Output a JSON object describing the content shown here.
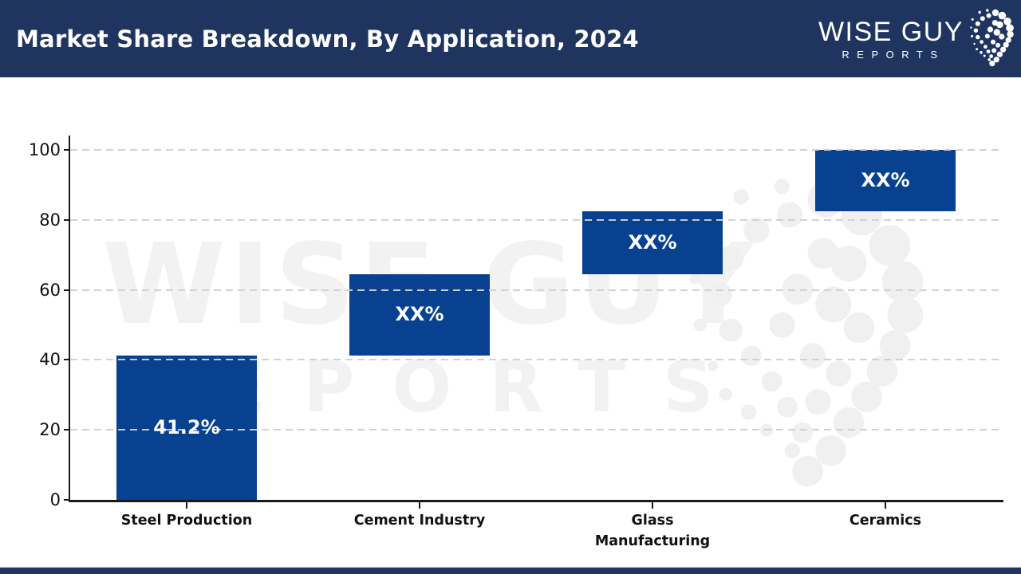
{
  "header": {
    "title": "Market Share Breakdown, By Application, 2024",
    "logo": {
      "line1": "WISE GUY",
      "line2": "REPORTS"
    }
  },
  "watermark": {
    "line1": "WISE GUY",
    "line2": "REPORTS"
  },
  "chart_data": {
    "type": "bar",
    "subtype": "waterfall",
    "title": "Market Share Breakdown, By Application, 2024",
    "categories": [
      "Steel Production",
      "Cement Industry",
      "Glass Manufacturing",
      "Ceramics"
    ],
    "categories_multiline": [
      [
        "Steel Production"
      ],
      [
        "Cement Industry"
      ],
      [
        "Glass",
        "Manufacturing"
      ],
      [
        "Ceramics"
      ]
    ],
    "segments": [
      {
        "start": 0,
        "end": 41.2
      },
      {
        "start": 41.2,
        "end": 64.4
      },
      {
        "start": 64.4,
        "end": 82.4
      },
      {
        "start": 82.4,
        "end": 100
      }
    ],
    "bar_labels": [
      "41.2%",
      "XX%",
      "XX%",
      "XX%"
    ],
    "y_ticks": [
      0,
      20,
      40,
      60,
      80,
      100
    ],
    "ylim": [
      0,
      100
    ],
    "grid": "horizontal-dashed",
    "legend": "none",
    "bar_color": "#07418f",
    "bar_label_color": "#ffffff",
    "header_color": "#1f3560"
  }
}
